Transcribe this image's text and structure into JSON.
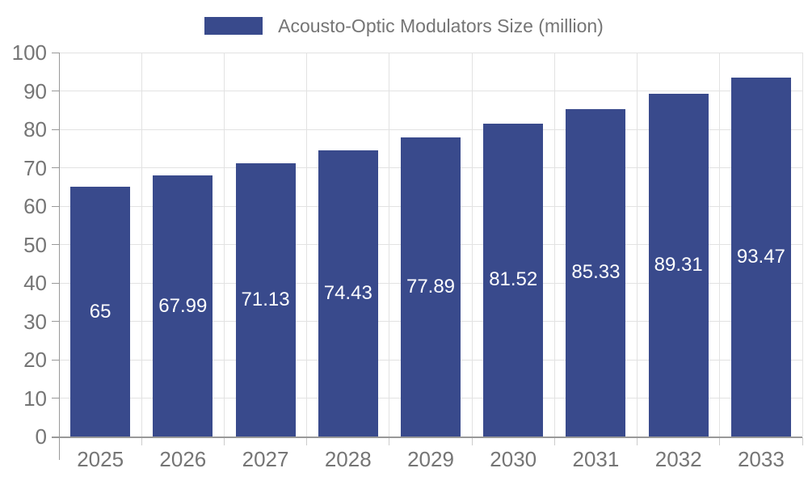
{
  "legend": {
    "label": "Acousto-Optic Modulators Size (million)",
    "swatch_color": "#394A8C"
  },
  "chart_data": {
    "type": "bar",
    "title": "",
    "categories": [
      "2025",
      "2026",
      "2027",
      "2028",
      "2029",
      "2030",
      "2031",
      "2032",
      "2033"
    ],
    "series": [
      {
        "name": "Acousto-Optic Modulators Size (million)",
        "values": [
          65,
          67.99,
          71.13,
          74.43,
          77.89,
          81.52,
          85.33,
          89.31,
          93.47
        ],
        "color": "#394A8C"
      }
    ],
    "value_labels": [
      "65",
      "67.99",
      "71.13",
      "74.43",
      "77.89",
      "81.52",
      "85.33",
      "89.31",
      "93.47"
    ],
    "xlabel": "",
    "ylabel": "",
    "ylim": [
      0,
      100
    ],
    "ytick_step": 10,
    "yticks": [
      0,
      10,
      20,
      30,
      40,
      50,
      60,
      70,
      80,
      90,
      100
    ],
    "grid": true,
    "legend_position": "top",
    "colors": {
      "bar": "#394A8C",
      "grid_line": "#e2e2e2",
      "axis_line": "#999999",
      "x_boundary_tick": "#cccccc",
      "tick_label": "#757575",
      "value_label": "#ffffff",
      "background": "#ffffff"
    }
  }
}
